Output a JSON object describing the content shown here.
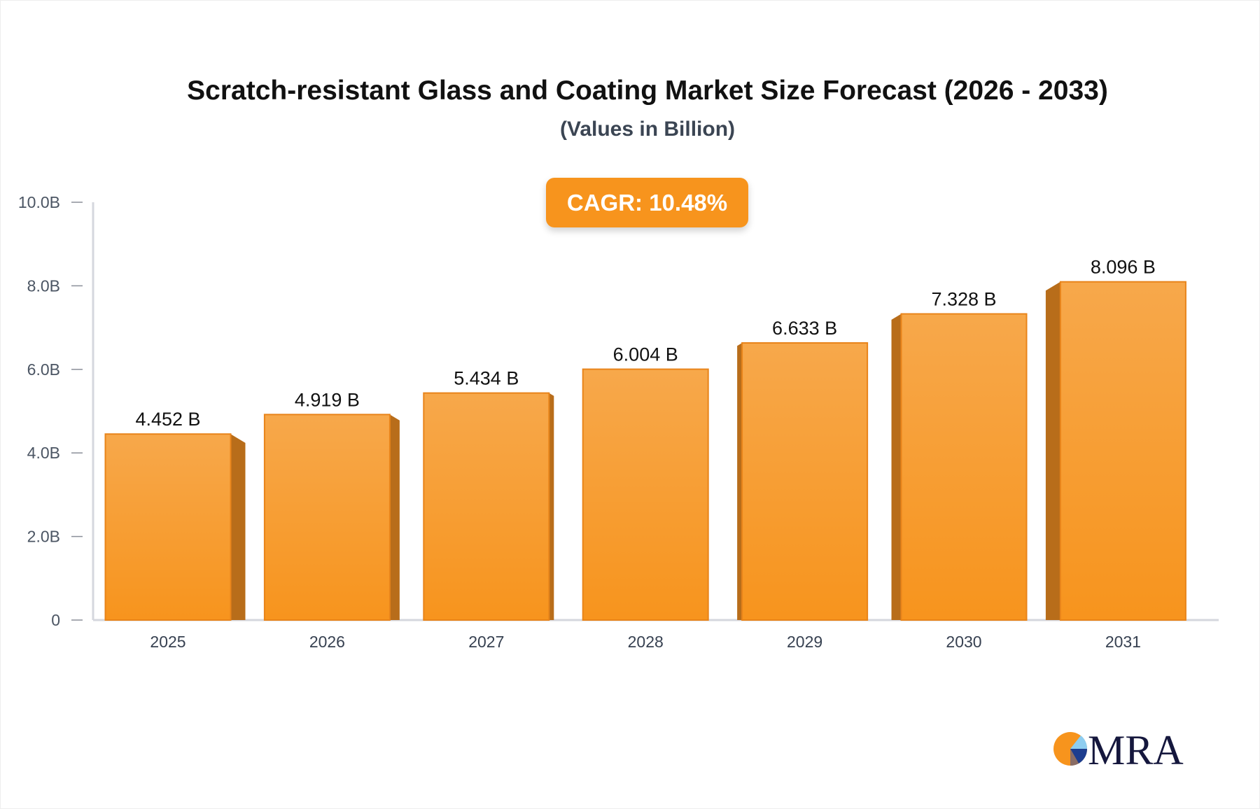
{
  "chart_data": {
    "type": "bar",
    "title": "Scratch-resistant Glass and Coating Market Size Forecast (2026 - 2033)",
    "subtitle": "(Values in Billion)",
    "annotation": "CAGR: 10.48%",
    "categories": [
      "2025",
      "2026",
      "2027",
      "2028",
      "2029",
      "2030",
      "2031"
    ],
    "values": [
      4.452,
      4.919,
      5.434,
      6.004,
      6.633,
      7.328,
      8.096
    ],
    "data_labels": [
      "4.452 B",
      "4.919 B",
      "5.434 B",
      "6.004 B",
      "6.633 B",
      "7.328 B",
      "8.096 B"
    ],
    "ylim": [
      0,
      10
    ],
    "yticks": [
      0,
      2,
      4,
      6,
      8,
      10
    ],
    "ytick_labels": [
      "0",
      "2.0B",
      "4.0B",
      "6.0B",
      "8.0B",
      "10.0B"
    ],
    "xlabel": "",
    "ylabel": "",
    "grid": false,
    "colors": {
      "bar": "#f7941d",
      "bar_top": "#f7a84b",
      "bar_side": "#b86d1a",
      "axis": "#d5d7de"
    }
  },
  "logo": {
    "text": "MRA",
    "colors": [
      "#f7941d",
      "#8ecdf0",
      "#1d3d8f",
      "#8a6d65"
    ],
    "text_color": "#15173d"
  }
}
